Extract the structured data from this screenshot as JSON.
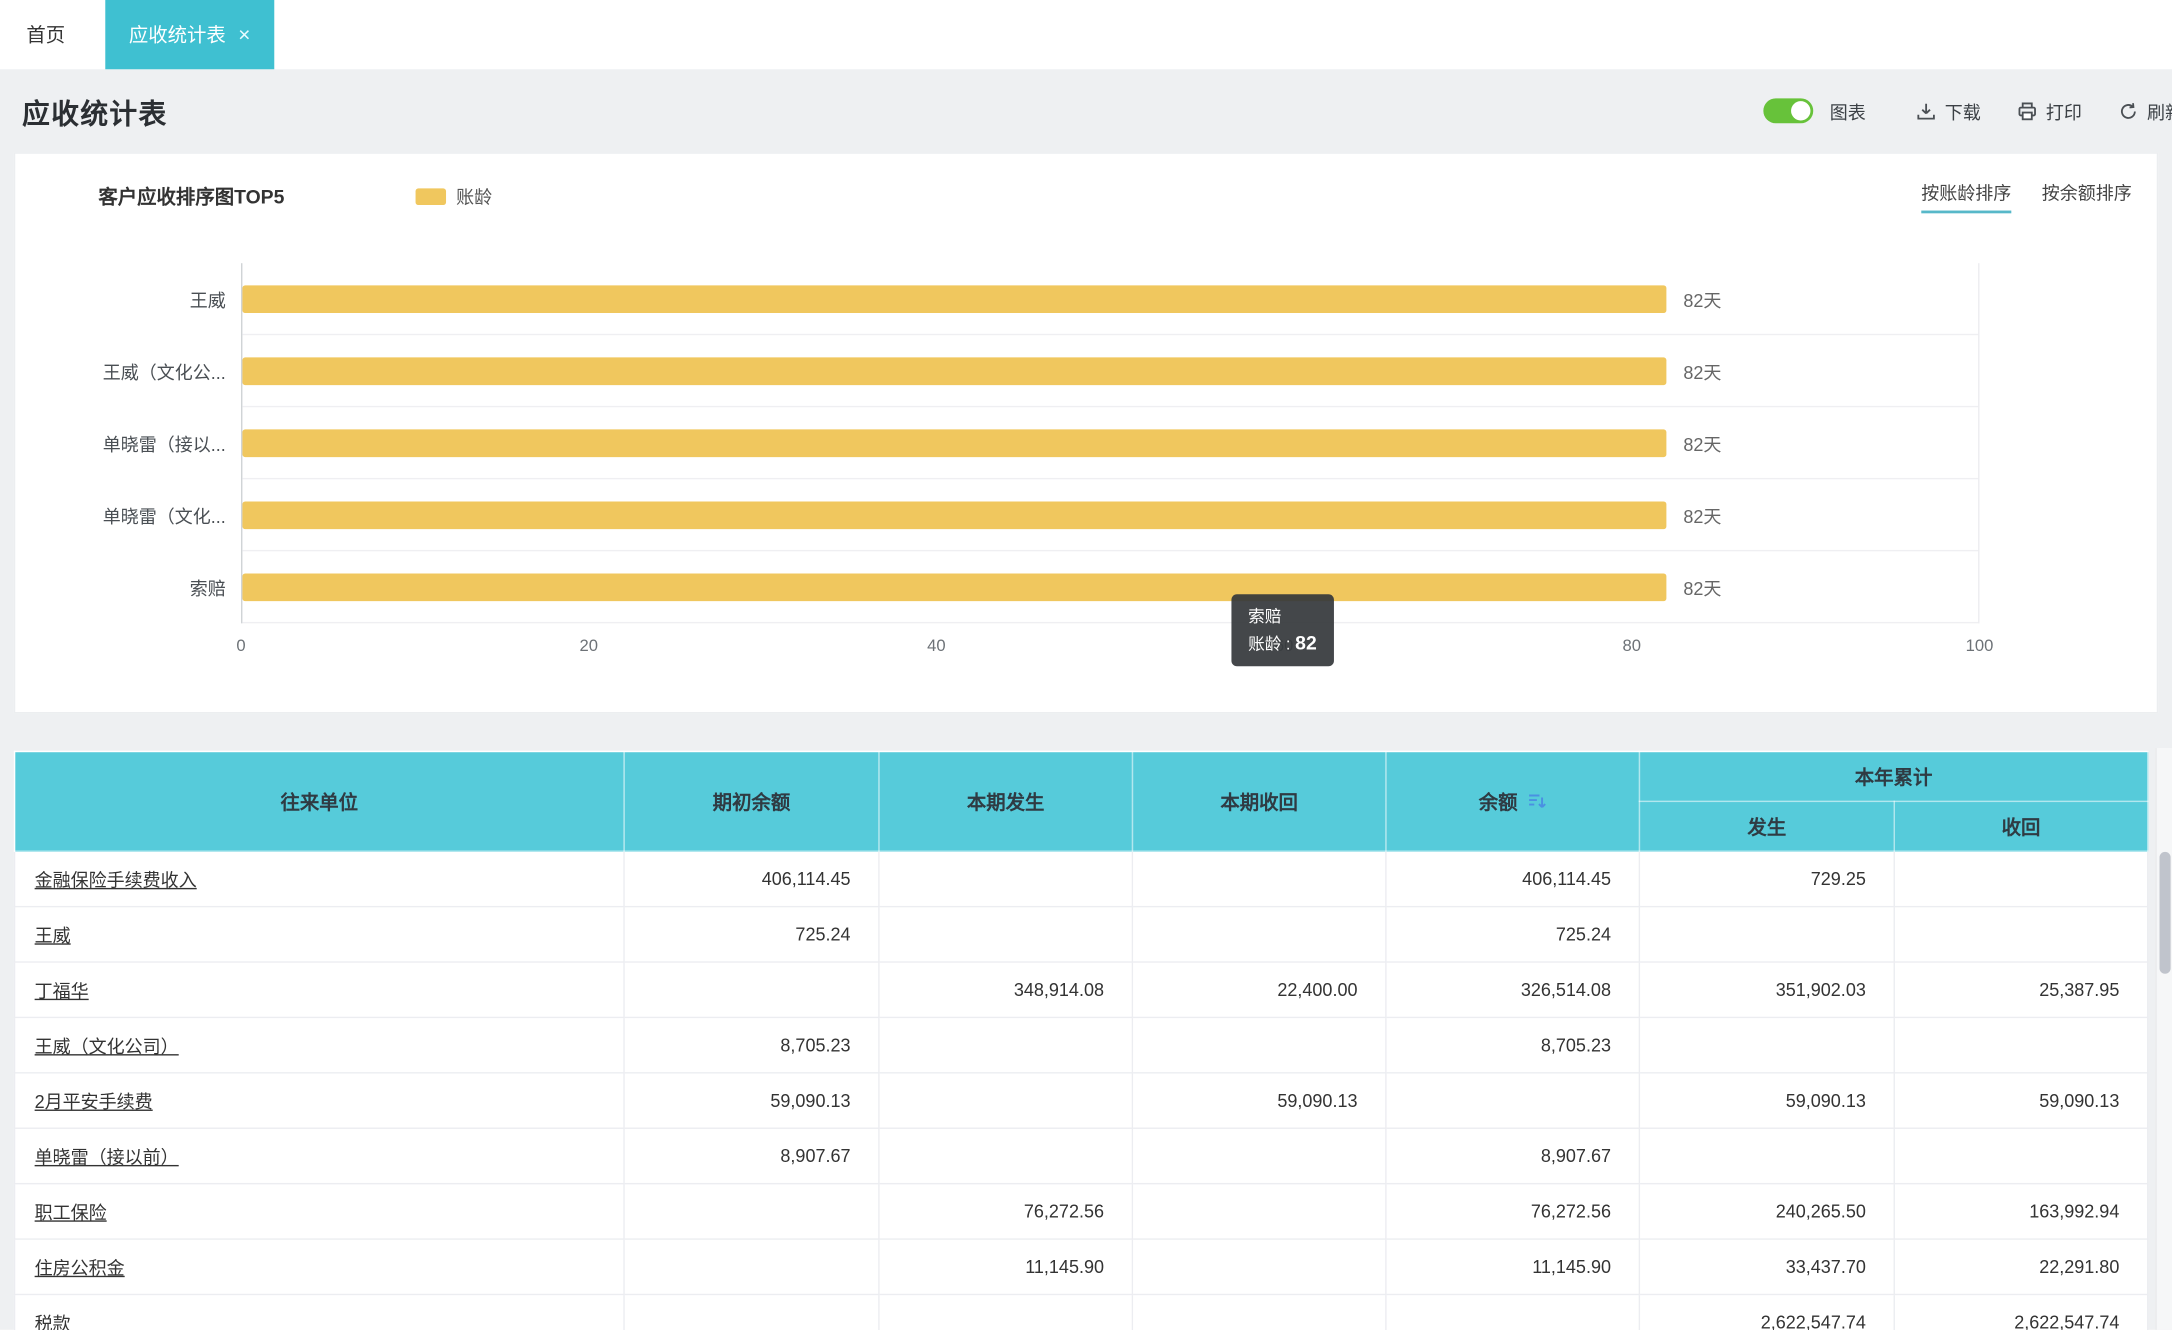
{
  "colors": {
    "accent_teal": "#3fc0d1",
    "table_header_teal": "#56cbda",
    "bar_yellow": "#f0c75e",
    "toggle_on_green": "#67c23a",
    "sort_icon_blue": "#4a90e2"
  },
  "tabs": {
    "home": "首页",
    "active_label": "应收统计表",
    "close_glyph": "×"
  },
  "header": {
    "title": "应收统计表",
    "toggle_label": "图表",
    "download_label": "下载",
    "print_label": "打印",
    "refresh_label": "刷新"
  },
  "chart": {
    "title": "客户应收排序图TOP5",
    "legend_label": "账龄",
    "sort_by_age": "按账龄排序",
    "sort_by_balance": "按余额排序"
  },
  "chart_data": {
    "type": "bar",
    "orientation": "horizontal",
    "series_name": "账龄",
    "categories": [
      "王威",
      "王威（文化公...",
      "单晓雷（接以...",
      "单晓雷（文化...",
      "索赔"
    ],
    "values": [
      82,
      82,
      82,
      82,
      82
    ],
    "value_labels": [
      "82天",
      "82天",
      "82天",
      "82天",
      "82天"
    ],
    "xlim": [
      0,
      100
    ],
    "x_ticks": [
      0,
      20,
      40,
      60,
      80,
      100
    ],
    "bar_color": "#f0c75e",
    "grid": true,
    "legend_position": "top"
  },
  "tooltip": {
    "title": "索赔",
    "label": "账龄 : ",
    "value": "82"
  },
  "table": {
    "headers": [
      "往来单位",
      "期初余额",
      "本期发生",
      "本期收回",
      "余额",
      "本年累计",
      "发生",
      "收回"
    ],
    "rows": [
      [
        "金融保险手续费收入",
        "406,114.45",
        "",
        "",
        "406,114.45",
        "729.25",
        ""
      ],
      [
        "王威",
        "725.24",
        "",
        "",
        "725.24",
        "",
        ""
      ],
      [
        "丁福华",
        "",
        "348,914.08",
        "22,400.00",
        "326,514.08",
        "351,902.03",
        "25,387.95"
      ],
      [
        "王威（文化公司）",
        "8,705.23",
        "",
        "",
        "8,705.23",
        "",
        ""
      ],
      [
        "2月平安手续费",
        "59,090.13",
        "",
        "59,090.13",
        "",
        "59,090.13",
        "59,090.13"
      ],
      [
        "单晓雷（接以前）",
        "8,907.67",
        "",
        "",
        "8,907.67",
        "",
        ""
      ],
      [
        "职工保险",
        "",
        "76,272.56",
        "",
        "76,272.56",
        "240,265.50",
        "163,992.94"
      ],
      [
        "住房公积金",
        "",
        "11,145.90",
        "",
        "11,145.90",
        "33,437.70",
        "22,291.80"
      ],
      [
        "税款",
        "",
        "",
        "",
        "",
        "2,622,547.74",
        "2,622,547.74"
      ]
    ]
  }
}
